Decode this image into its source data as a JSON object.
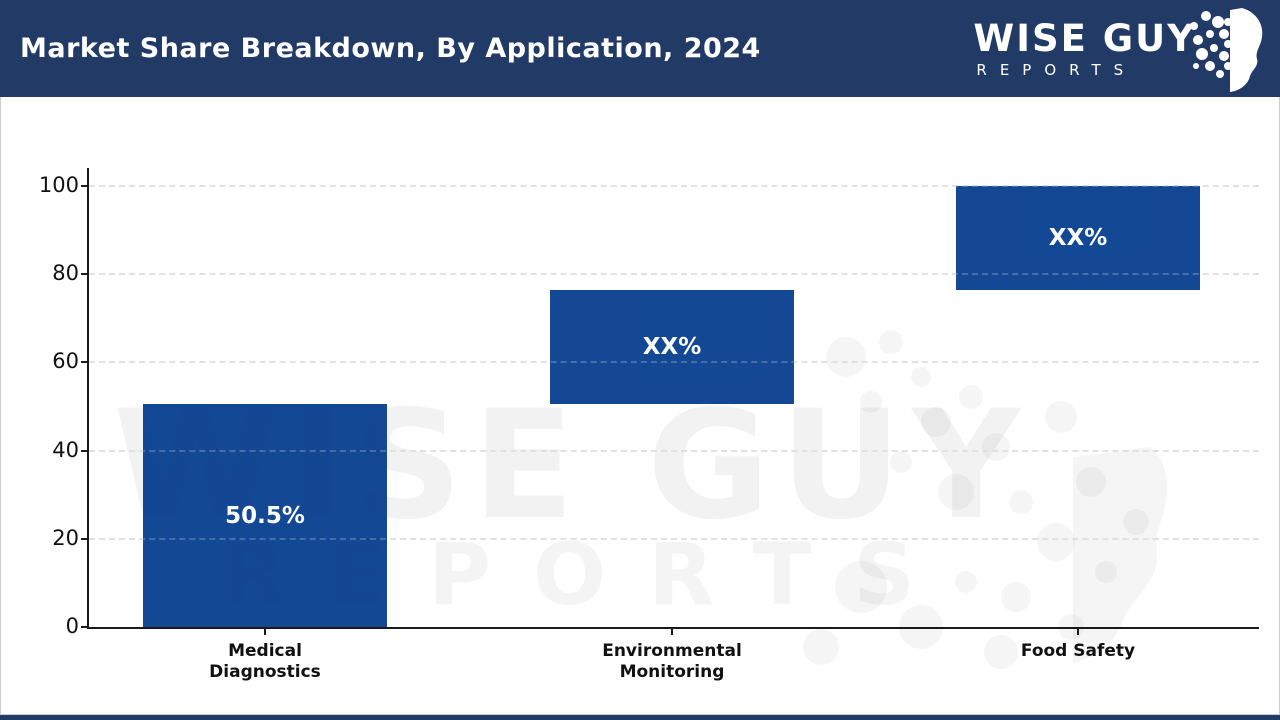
{
  "header": {
    "title": "Market Share Breakdown, By Application, 2024",
    "logo": {
      "wordmark": "WISE GUY",
      "subtext": "REPORTS"
    }
  },
  "watermark": {
    "line1": "WISE GUY",
    "line2": "REPORTS"
  },
  "chart_data": {
    "type": "bar",
    "variant": "stacked-waterfall-segments",
    "title": "Market Share Breakdown, By Application, 2024",
    "categories": [
      "Medical Diagnostics",
      "Environmental Monitoring",
      "Food Safety"
    ],
    "category_label_lines": [
      [
        "Medical",
        "Diagnostics"
      ],
      [
        "Environmental",
        "Monitoring"
      ],
      [
        "Food Safety"
      ]
    ],
    "segments": [
      {
        "category": "Medical Diagnostics",
        "start": 0,
        "end": 50.5,
        "label": "50.5%"
      },
      {
        "category": "Environmental Monitoring",
        "start": 50.5,
        "end": 76.5,
        "label": "XX%"
      },
      {
        "category": "Food Safety",
        "start": 76.5,
        "end": 100,
        "label": "XX%"
      }
    ],
    "ylim": [
      0,
      100
    ],
    "yticks": [
      0,
      20,
      40,
      60,
      80,
      100
    ],
    "xlabel": "",
    "ylabel": "",
    "legend": "none",
    "grid": "horizontal-dashed",
    "bar_color": "#0a4191",
    "bar_label_color": "#ffffff",
    "axis_color": "#1a1a1a",
    "header_bg": "#223a66",
    "accent_navy": "#223a66"
  }
}
